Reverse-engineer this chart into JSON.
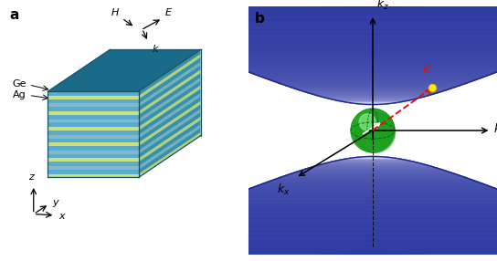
{
  "panel_a_label": "a",
  "panel_b_label": "b",
  "bg_color": "#ffffff",
  "box_top_color": "#1a6b8a",
  "box_front_base": "#5aaBcc",
  "box_right_base": "#3a90aa",
  "layer_ge_color": "#88bbcc",
  "layer_ag_color": "#d8e878",
  "ge_label": "Ge",
  "ag_label": "Ag",
  "hyp_dark": "#2535a0",
  "hyp_mid": "#4555c0",
  "hyp_light": "#9aA8e0",
  "hyp_white": "#d0d8f8",
  "sphere_color": "#22aa22",
  "sphere_hi": "#55dd55",
  "arrow_k_color": "#cc1111",
  "dot_color": "#ffee00",
  "axis_label_E": "E",
  "axis_label_H": "H",
  "axis_label_k": "k",
  "axis_label_z": "z",
  "axis_label_y": "y",
  "axis_label_x": "x"
}
